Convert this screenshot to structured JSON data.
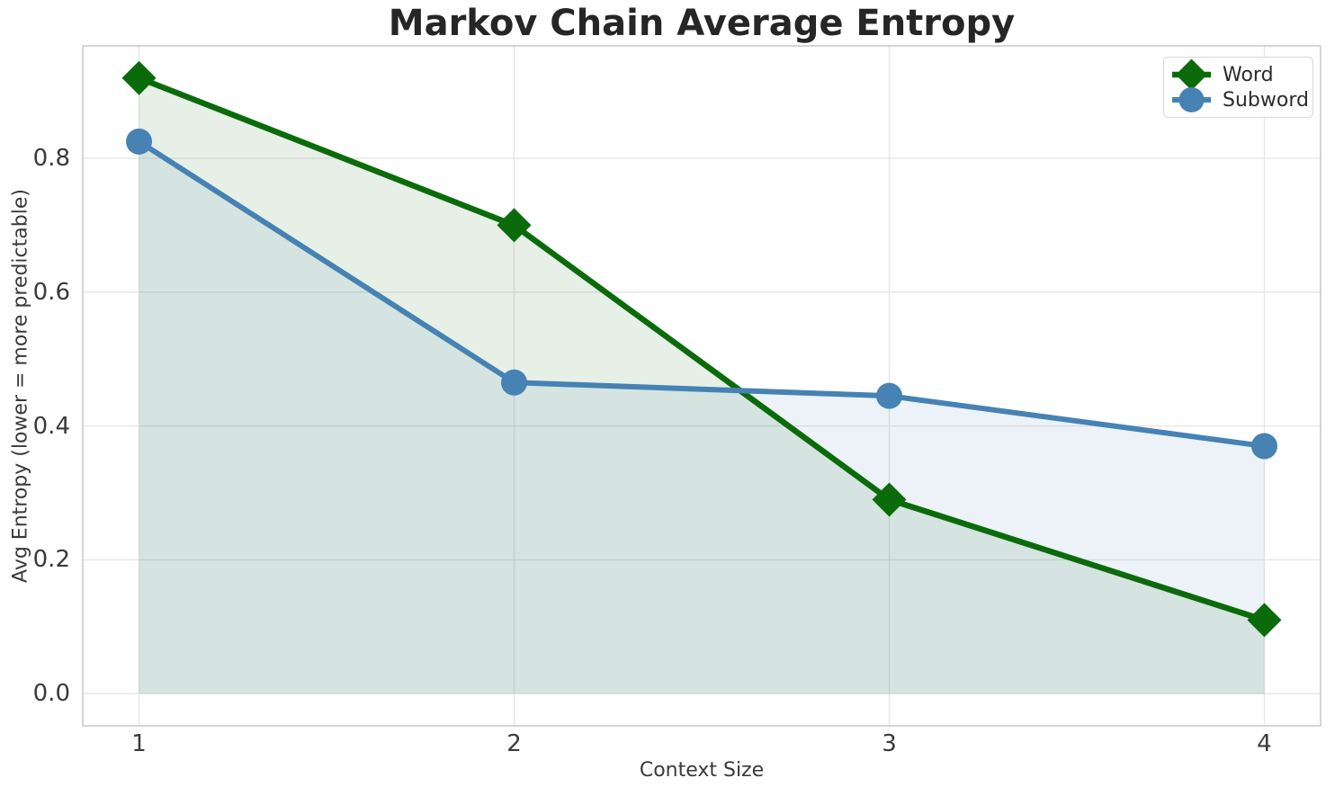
{
  "chart_data": {
    "type": "line",
    "title": "Markov Chain Average Entropy",
    "xlabel": "Context Size",
    "ylabel": "Avg Entropy (lower = more predictable)",
    "x": [
      1,
      2,
      3,
      4
    ],
    "series": [
      {
        "name": "Word",
        "color": "#0b6b0b",
        "marker": "diamond",
        "marker_size": 19,
        "line_width": 6.5,
        "values": [
          0.92,
          0.7,
          0.29,
          0.11
        ]
      },
      {
        "name": "Subword",
        "color": "#4682b4",
        "marker": "circle",
        "marker_size": 14.5,
        "line_width": 6,
        "values": [
          0.825,
          0.465,
          0.445,
          0.37
        ]
      }
    ],
    "fill_to_zero": true,
    "fill_opacity": 0.1,
    "xlim": [
      0.85,
      4.15
    ],
    "ylim": [
      -0.048,
      0.968
    ],
    "xticks": [
      "1",
      "2",
      "3",
      "4"
    ],
    "xtick_values": [
      1,
      2,
      3,
      4
    ],
    "yticks": [
      "0.0",
      "0.2",
      "0.4",
      "0.6",
      "0.8"
    ],
    "ytick_values": [
      0,
      0.2,
      0.4,
      0.6,
      0.8
    ],
    "grid": true,
    "legend": {
      "position": "upper right",
      "entries": [
        "Word",
        "Subword"
      ]
    },
    "colors": {
      "grid": "#e5e5e5",
      "spine": "#c8c8c8",
      "tick_text": "#3a3a3a",
      "label_text": "#3a3a3a",
      "title_text": "#262626",
      "legend_text": "#2b2b2b",
      "legend_border": "#d8d8d8",
      "background": "#ffffff"
    }
  }
}
